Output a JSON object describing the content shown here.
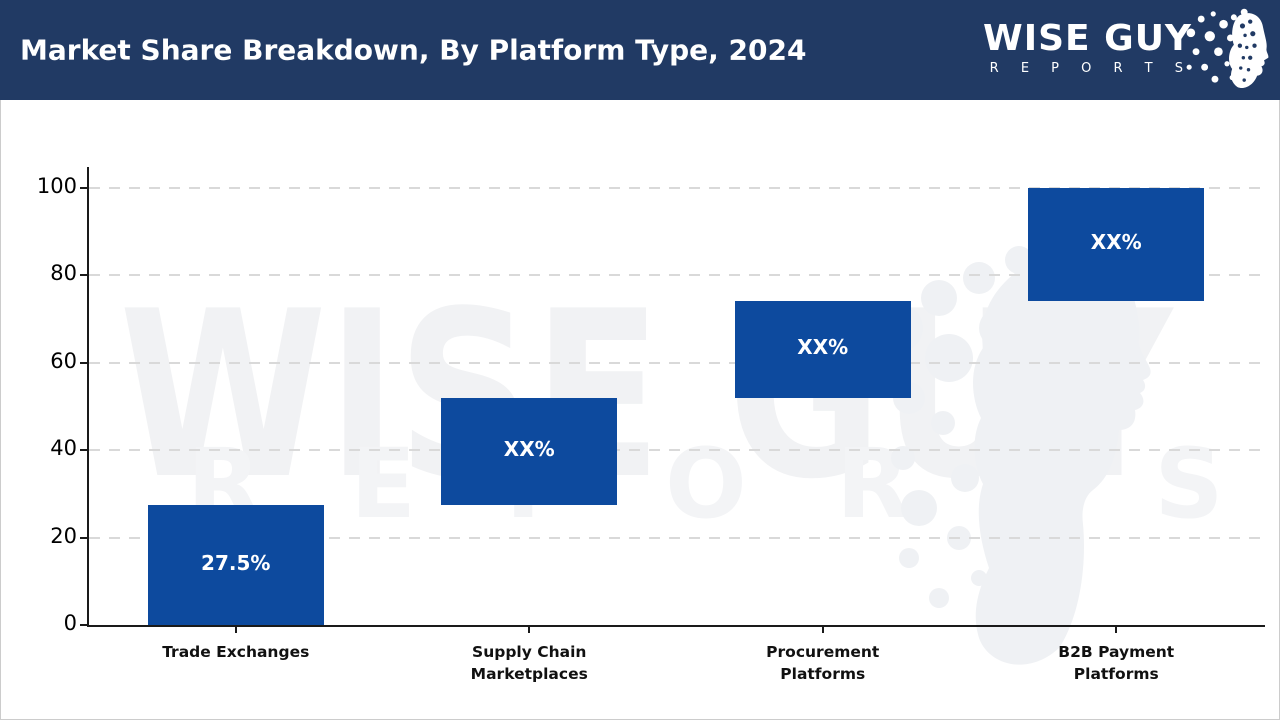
{
  "header": {
    "title": "Market Share Breakdown, By Platform Type, 2024",
    "logo": {
      "line1": "WISE GUY",
      "line2": "R E P O R T S"
    }
  },
  "watermark": {
    "line1": "WISE GUY",
    "line2": "R E P O R T S"
  },
  "chart_data": {
    "type": "bar",
    "subtype": "waterfall",
    "title": "Market Share Breakdown, By Platform Type, 2024",
    "categories": [
      "Trade Exchanges",
      "Supply Chain Marketplaces",
      "Procurement Platforms",
      "B2B Payment Platforms"
    ],
    "category_lines": [
      [
        "Trade Exchanges"
      ],
      [
        "Supply Chain",
        "Marketplaces"
      ],
      [
        "Procurement",
        "Platforms"
      ],
      [
        "B2B Payment",
        "Platforms"
      ]
    ],
    "segments": [
      {
        "category": "Trade Exchanges",
        "start": 0,
        "end": 27.5,
        "label": "27.5%"
      },
      {
        "category": "Supply Chain Marketplaces",
        "start": 27.5,
        "end": 52,
        "label": "XX%"
      },
      {
        "category": "Procurement Platforms",
        "start": 52,
        "end": 74,
        "label": "XX%"
      },
      {
        "category": "B2B Payment Platforms",
        "start": 74,
        "end": 100,
        "label": "XX%"
      }
    ],
    "xlabel": "",
    "ylabel": "",
    "ylim": [
      0,
      105
    ],
    "yticks": [
      0,
      20,
      40,
      60,
      80,
      100
    ],
    "grid": "horizontal-dashed",
    "legend": "none",
    "colors": {
      "bar": "#0d4a9e",
      "bar_label": "#ffffff",
      "axis": "#1a1a1a",
      "gridline": "#d9d9d9",
      "header_bg": "#213a64",
      "watermark": "#f1f2f4"
    }
  }
}
